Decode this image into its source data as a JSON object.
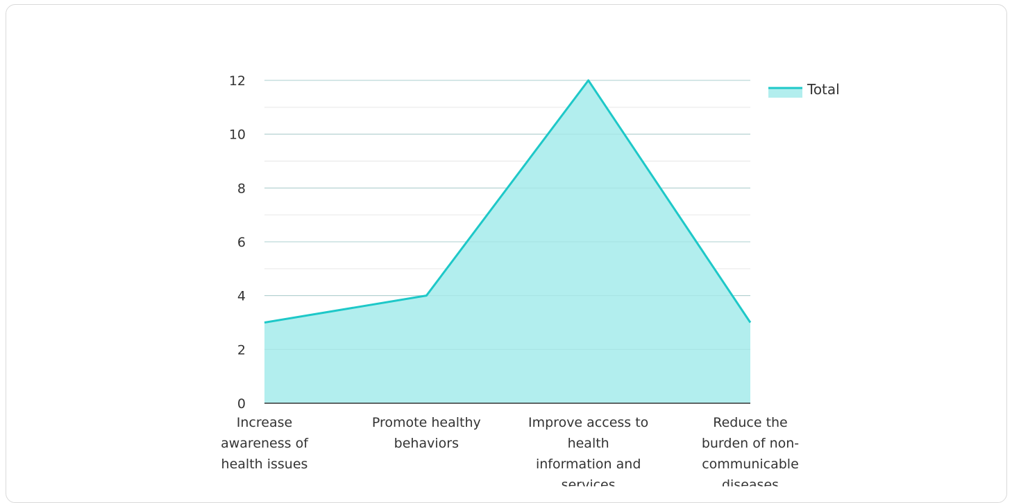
{
  "chart_data": {
    "type": "area",
    "title": "",
    "xlabel": "",
    "ylabel": "",
    "ylim": [
      0,
      12
    ],
    "yticks": [
      0,
      2,
      4,
      6,
      8,
      10,
      12
    ],
    "grid": true,
    "legend_position": "top-right",
    "categories": [
      [
        "Increase",
        "awareness of",
        "health issues"
      ],
      [
        "Promote healthy",
        "behaviors"
      ],
      [
        "Improve access to",
        "health",
        "information and",
        "services"
      ],
      [
        "Reduce the",
        "burden of non-",
        "communicable",
        "diseases"
      ]
    ],
    "series": [
      {
        "name": "Total",
        "values": [
          3,
          4,
          12,
          3
        ],
        "line_color": "#1ec8c8",
        "fill_color": "#b2eeee"
      }
    ]
  }
}
